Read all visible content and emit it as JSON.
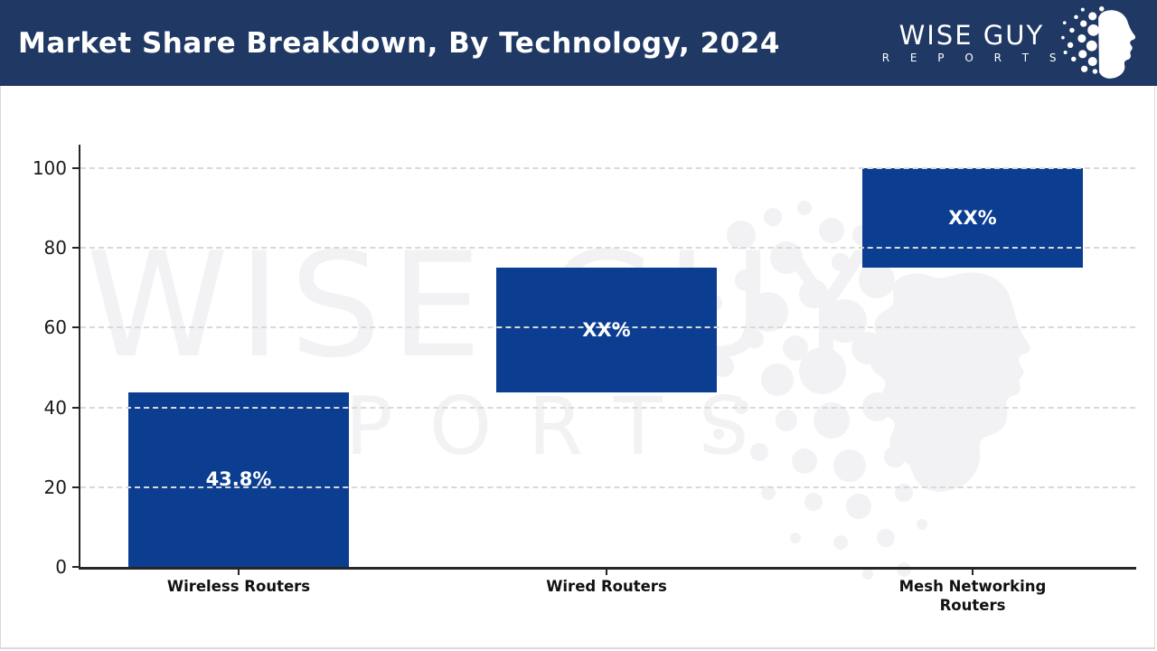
{
  "header": {
    "title": "Market Share Breakdown, By Technology, 2024",
    "brand": {
      "line1": "WISE GUY",
      "line2": "R E P O R T S"
    },
    "bg_color": "#1F3864"
  },
  "watermark": {
    "line1": "WISE GUY",
    "line2": "REPORTS"
  },
  "chart_data": {
    "type": "bar",
    "variant": "floating-waterfall",
    "title": "Market Share Breakdown, By Technology, 2024",
    "categories": [
      "Wireless Routers",
      "Wired Routers",
      "Mesh Networking Routers"
    ],
    "segments": [
      {
        "category": "Wireless Routers",
        "start": 0,
        "end": 43.8,
        "label": "43.8%"
      },
      {
        "category": "Wired Routers",
        "start": 43.8,
        "end": 75,
        "label": "XX%"
      },
      {
        "category": "Mesh Networking Routers",
        "start": 75,
        "end": 100,
        "label": "XX%"
      }
    ],
    "xlabel": "",
    "ylabel": "",
    "y_ticks": [
      0,
      20,
      40,
      60,
      80,
      100
    ],
    "ylim": [
      0,
      105
    ],
    "grid": "horizontal-dashed",
    "legend": null,
    "bar_color": "#0B3D91",
    "bar_label_color": "#ffffff",
    "axis_color": "#262626",
    "grid_color": "#d9d9d9"
  }
}
